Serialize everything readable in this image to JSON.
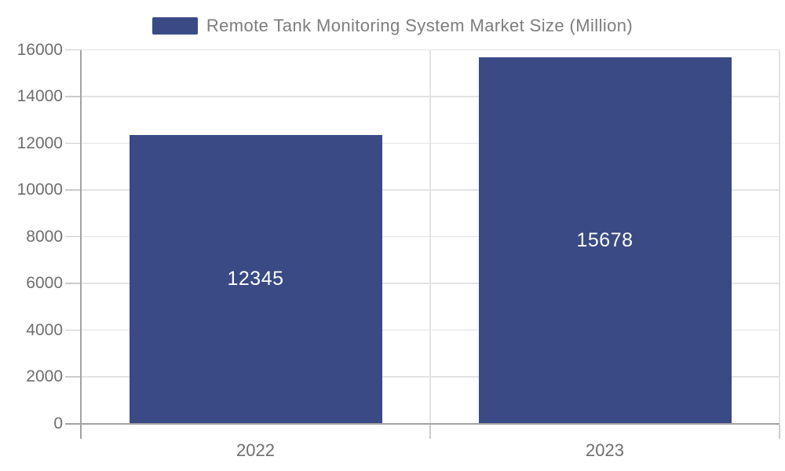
{
  "legend": {
    "label": "Remote Tank Monitoring System Market Size (Million)",
    "swatch_color": "#3A4A84"
  },
  "chart_data": {
    "type": "bar",
    "title": "Remote Tank Monitoring System Market Size (Million)",
    "categories": [
      "2022",
      "2023"
    ],
    "series": [
      {
        "name": "Remote Tank Monitoring System Market Size (Million)",
        "values": [
          12345,
          15678
        ]
      }
    ],
    "data_labels": [
      "12345",
      "15678"
    ],
    "xlabel": "",
    "ylabel": "",
    "ylim": [
      0,
      16000
    ],
    "yticks": [
      0,
      2000,
      4000,
      6000,
      8000,
      10000,
      12000,
      14000,
      16000
    ],
    "grid": true,
    "legend_position": "top-center",
    "colors": {
      "bar": "#3A4A84",
      "bar_label": "#FFFFFF",
      "axis_line": "#A3A3A3",
      "grid_line": "#E3E3E3",
      "tick": "#CBCBCB",
      "axis_label": "#6E6E6E",
      "legend_text": "#7D7D7D"
    }
  }
}
